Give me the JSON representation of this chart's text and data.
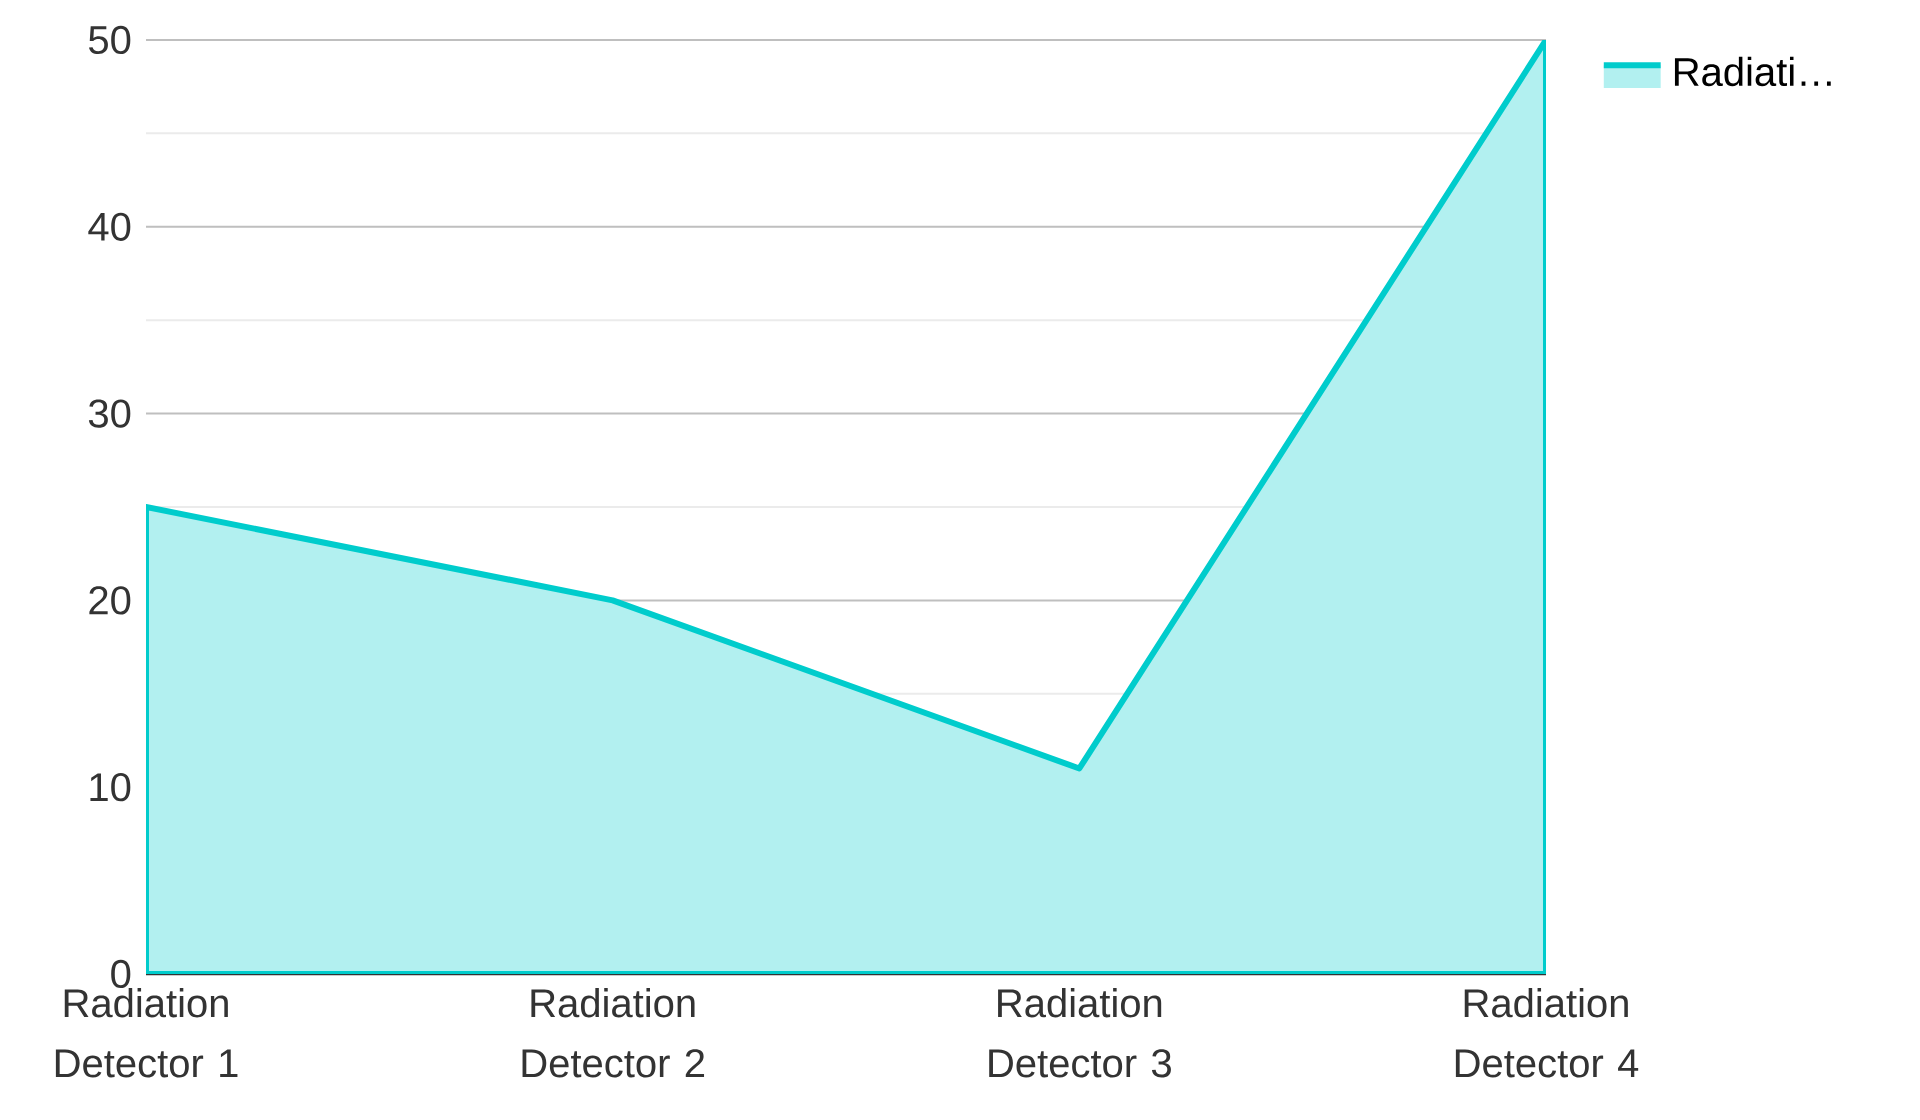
{
  "chart_data": {
    "type": "area",
    "categories": [
      "Radiation Detector 1",
      "Radiation Detector 2",
      "Radiation Detector 3",
      "Radiation Detector 4"
    ],
    "series": [
      {
        "name": "Radiati…",
        "color": "#00cccc",
        "values": [
          25,
          20,
          11,
          50
        ]
      }
    ],
    "ylim": [
      0,
      50
    ],
    "yticks": [
      0,
      10,
      20,
      30,
      40,
      50
    ],
    "grid": "y",
    "legend": "top right"
  }
}
